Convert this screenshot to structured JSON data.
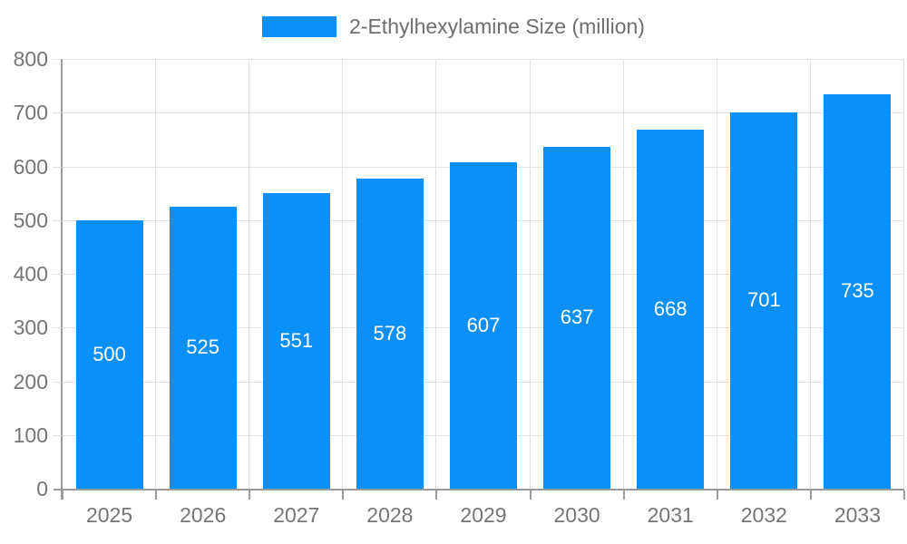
{
  "chart_data": {
    "type": "bar",
    "title": "2-Ethylhexylamine Size (million)",
    "categories": [
      "2025",
      "2026",
      "2027",
      "2028",
      "2029",
      "2030",
      "2031",
      "2032",
      "2033"
    ],
    "values": [
      500,
      525,
      551,
      578,
      607,
      637,
      668,
      701,
      735
    ],
    "xlabel": "",
    "ylabel": "",
    "ylim": [
      0,
      800
    ],
    "yticks": [
      0,
      100,
      200,
      300,
      400,
      500,
      600,
      700,
      800
    ],
    "grid": true,
    "legend_position": "top-center",
    "bar_color": "#0a90f8",
    "bar_label_color": "#ffffff",
    "axis_text_color": "#757575",
    "axis_line_color": "#9a9a9a",
    "gridline_color": "#e2e2e2"
  }
}
